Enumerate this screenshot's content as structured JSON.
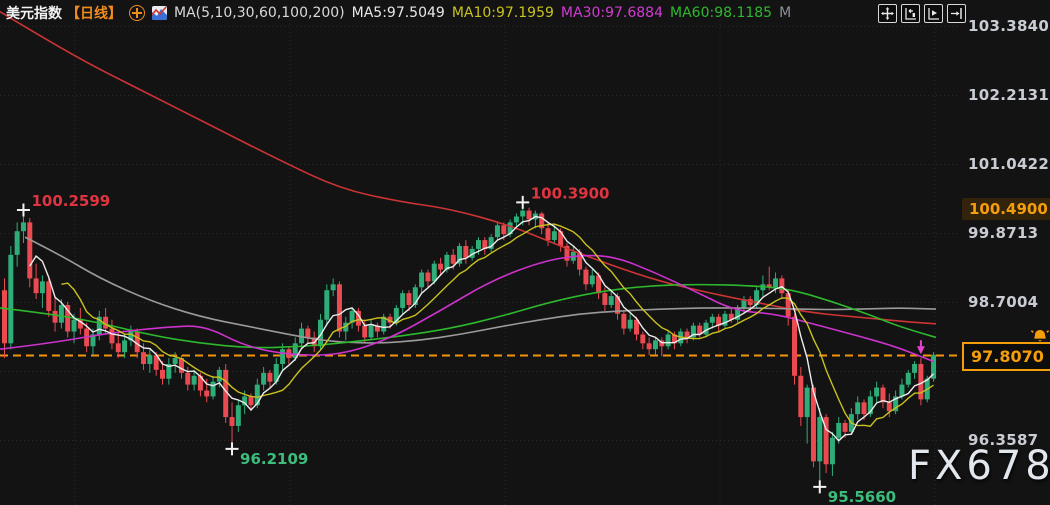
{
  "header": {
    "title": "美元指数",
    "period": "【日线】",
    "ma_group": "MA(5,10,30,60,100,200)",
    "ma5": "MA5:97.5049",
    "ma10": "MA10:97.1959",
    "ma30": "MA30:97.6884",
    "ma60": "MA60:98.1185",
    "extra": "M"
  },
  "watermark": "FX678",
  "chart_data": {
    "type": "candlestick",
    "instrument": "美元指数",
    "period": "日线",
    "current_price": 97.807,
    "current_price_label": "97.8070",
    "alert_level": {
      "label": "100.4900",
      "anchor_price": 100.27
    },
    "ylim": [
      95.3,
      103.8
    ],
    "axis_labels": [
      {
        "text": "103.3840",
        "price": 103.384
      },
      {
        "text": "102.2131",
        "price": 102.2131
      },
      {
        "text": "101.0422",
        "price": 101.0422
      },
      {
        "text": "99.8713",
        "price": 99.8713
      },
      {
        "text": "98.7004",
        "price": 98.7004
      },
      {
        "text": "96.3587",
        "price": 96.3587
      }
    ],
    "gridline_prices": [
      103.384,
      102.2131,
      101.0422,
      99.8713,
      98.7004,
      97.5295,
      96.3587
    ],
    "indicator_values": {
      "ma5": 97.5049,
      "ma10": 97.1959,
      "ma30": 97.6884,
      "ma60": 98.1185
    },
    "candles": [
      [
        98.9,
        99.1,
        97.75,
        98.0
      ],
      [
        98.0,
        99.65,
        97.9,
        99.5
      ],
      [
        99.5,
        100.05,
        99.3,
        99.9
      ],
      [
        99.9,
        100.26,
        99.7,
        100.05
      ],
      [
        100.05,
        100.12,
        98.95,
        99.1
      ],
      [
        99.1,
        99.35,
        98.75,
        98.85
      ],
      [
        98.85,
        99.15,
        98.6,
        99.05
      ],
      [
        99.05,
        99.1,
        98.45,
        98.55
      ],
      [
        98.55,
        98.8,
        98.2,
        98.35
      ],
      [
        98.35,
        98.75,
        98.25,
        98.65
      ],
      [
        98.65,
        98.7,
        98.1,
        98.2
      ],
      [
        98.2,
        98.5,
        98.0,
        98.4
      ],
      [
        98.4,
        98.6,
        98.15,
        98.25
      ],
      [
        98.25,
        98.35,
        97.85,
        97.95
      ],
      [
        97.95,
        98.25,
        97.8,
        98.15
      ],
      [
        98.15,
        98.55,
        98.05,
        98.45
      ],
      [
        98.45,
        98.6,
        98.15,
        98.25
      ],
      [
        98.25,
        98.4,
        97.9,
        98.0
      ],
      [
        98.0,
        98.2,
        97.75,
        97.85
      ],
      [
        97.85,
        98.15,
        97.75,
        98.05
      ],
      [
        98.05,
        98.3,
        97.95,
        98.2
      ],
      [
        98.2,
        98.25,
        97.75,
        97.85
      ],
      [
        97.85,
        98.0,
        97.55,
        97.65
      ],
      [
        97.65,
        97.9,
        97.5,
        97.8
      ],
      [
        97.8,
        97.85,
        97.45,
        97.55
      ],
      [
        97.55,
        97.7,
        97.3,
        97.4
      ],
      [
        97.4,
        97.75,
        97.3,
        97.65
      ],
      [
        97.65,
        97.85,
        97.5,
        97.75
      ],
      [
        97.75,
        97.8,
        97.4,
        97.5
      ],
      [
        97.5,
        97.6,
        97.2,
        97.3
      ],
      [
        97.3,
        97.55,
        97.2,
        97.45
      ],
      [
        97.45,
        97.5,
        97.1,
        97.2
      ],
      [
        97.2,
        97.4,
        97.0,
        97.1
      ],
      [
        97.1,
        97.45,
        97.05,
        97.35
      ],
      [
        97.35,
        97.6,
        97.25,
        97.55
      ],
      [
        97.55,
        97.65,
        96.65,
        96.75
      ],
      [
        96.75,
        97.0,
        96.21,
        96.6
      ],
      [
        96.6,
        97.05,
        96.5,
        96.95
      ],
      [
        96.95,
        97.2,
        96.8,
        97.1
      ],
      [
        97.1,
        97.15,
        96.85,
        96.95
      ],
      [
        96.95,
        97.4,
        96.9,
        97.3
      ],
      [
        97.3,
        97.6,
        97.2,
        97.5
      ],
      [
        97.5,
        97.55,
        97.25,
        97.35
      ],
      [
        97.35,
        97.75,
        97.3,
        97.65
      ],
      [
        97.65,
        98.0,
        97.55,
        97.9
      ],
      [
        97.9,
        97.95,
        97.65,
        97.75
      ],
      [
        97.75,
        98.1,
        97.7,
        98.0
      ],
      [
        98.0,
        98.35,
        97.9,
        98.25
      ],
      [
        98.25,
        98.3,
        98.0,
        98.1
      ],
      [
        98.1,
        98.2,
        97.85,
        97.95
      ],
      [
        97.95,
        98.5,
        97.9,
        98.4
      ],
      [
        98.4,
        99.0,
        98.3,
        98.9
      ],
      [
        98.9,
        99.1,
        98.8,
        99.0
      ],
      [
        99.0,
        99.05,
        98.1,
        98.2
      ],
      [
        98.2,
        98.45,
        98.05,
        98.35
      ],
      [
        98.35,
        98.6,
        98.25,
        98.55
      ],
      [
        98.55,
        98.6,
        98.2,
        98.3
      ],
      [
        98.3,
        98.4,
        98.0,
        98.1
      ],
      [
        98.1,
        98.4,
        98.05,
        98.3
      ],
      [
        98.3,
        98.35,
        98.1,
        98.2
      ],
      [
        98.2,
        98.5,
        98.15,
        98.45
      ],
      [
        98.45,
        98.5,
        98.25,
        98.35
      ],
      [
        98.35,
        98.65,
        98.3,
        98.6
      ],
      [
        98.6,
        98.9,
        98.5,
        98.85
      ],
      [
        98.85,
        98.9,
        98.55,
        98.65
      ],
      [
        98.65,
        99.0,
        98.6,
        98.95
      ],
      [
        98.95,
        99.25,
        98.85,
        99.2
      ],
      [
        99.2,
        99.25,
        98.95,
        99.05
      ],
      [
        99.05,
        99.4,
        99.0,
        99.35
      ],
      [
        99.35,
        99.45,
        99.15,
        99.25
      ],
      [
        99.25,
        99.55,
        99.2,
        99.5
      ],
      [
        99.5,
        99.6,
        99.25,
        99.35
      ],
      [
        99.35,
        99.7,
        99.3,
        99.65
      ],
      [
        99.65,
        99.75,
        99.35,
        99.45
      ],
      [
        99.45,
        99.65,
        99.4,
        99.6
      ],
      [
        99.6,
        99.8,
        99.5,
        99.75
      ],
      [
        99.75,
        99.8,
        99.5,
        99.6
      ],
      [
        99.6,
        99.85,
        99.55,
        99.8
      ],
      [
        99.8,
        100.05,
        99.75,
        100.0
      ],
      [
        100.0,
        100.05,
        99.75,
        99.85
      ],
      [
        99.85,
        100.1,
        99.8,
        100.05
      ],
      [
        100.05,
        100.2,
        99.95,
        100.15
      ],
      [
        100.15,
        100.39,
        100.0,
        100.25
      ],
      [
        100.25,
        100.3,
        100.0,
        100.1
      ],
      [
        100.1,
        100.25,
        99.95,
        100.2
      ],
      [
        100.2,
        100.23,
        99.85,
        99.95
      ],
      [
        99.95,
        100.05,
        99.65,
        99.75
      ],
      [
        99.75,
        100.0,
        99.7,
        99.9
      ],
      [
        99.9,
        99.95,
        99.55,
        99.65
      ],
      [
        99.65,
        99.7,
        99.3,
        99.4
      ],
      [
        99.4,
        99.65,
        99.35,
        99.55
      ],
      [
        99.55,
        99.6,
        99.15,
        99.25
      ],
      [
        99.25,
        99.3,
        98.9,
        99.0
      ],
      [
        99.0,
        99.25,
        98.95,
        99.15
      ],
      [
        99.15,
        99.2,
        98.75,
        98.85
      ],
      [
        98.85,
        98.95,
        98.55,
        98.65
      ],
      [
        98.65,
        98.9,
        98.6,
        98.8
      ],
      [
        98.8,
        98.85,
        98.4,
        98.5
      ],
      [
        98.5,
        98.55,
        98.15,
        98.25
      ],
      [
        98.25,
        98.5,
        98.2,
        98.4
      ],
      [
        98.4,
        98.45,
        98.05,
        98.15
      ],
      [
        98.15,
        98.2,
        97.9,
        98.0
      ],
      [
        98.0,
        98.1,
        97.8,
        97.9
      ],
      [
        97.9,
        98.1,
        97.8,
        98.05
      ],
      [
        98.05,
        98.1,
        97.78,
        97.95
      ],
      [
        97.95,
        98.2,
        97.9,
        98.15
      ],
      [
        98.15,
        98.2,
        97.9,
        98.0
      ],
      [
        98.0,
        98.25,
        97.95,
        98.2
      ],
      [
        98.2,
        98.25,
        98.0,
        98.1
      ],
      [
        98.1,
        98.35,
        98.05,
        98.3
      ],
      [
        98.3,
        98.35,
        98.1,
        98.15
      ],
      [
        98.15,
        98.4,
        98.1,
        98.35
      ],
      [
        98.35,
        98.5,
        98.25,
        98.45
      ],
      [
        98.45,
        98.5,
        98.2,
        98.3
      ],
      [
        98.3,
        98.55,
        98.25,
        98.5
      ],
      [
        98.5,
        98.6,
        98.35,
        98.4
      ],
      [
        98.4,
        98.65,
        98.35,
        98.6
      ],
      [
        98.6,
        98.8,
        98.5,
        98.75
      ],
      [
        98.75,
        98.8,
        98.55,
        98.65
      ],
      [
        98.65,
        98.95,
        98.6,
        98.9
      ],
      [
        98.9,
        99.15,
        98.8,
        99.0
      ],
      [
        99.0,
        99.3,
        98.9,
        98.95
      ],
      [
        98.95,
        99.2,
        98.85,
        99.1
      ],
      [
        99.1,
        99.15,
        98.75,
        98.85
      ],
      [
        98.85,
        98.9,
        98.3,
        98.45
      ],
      [
        98.45,
        98.5,
        97.3,
        97.45
      ],
      [
        97.45,
        97.6,
        96.6,
        96.75
      ],
      [
        96.75,
        97.3,
        96.3,
        97.25
      ],
      [
        97.25,
        97.3,
        95.9,
        96.0
      ],
      [
        96.0,
        96.9,
        95.566,
        96.75
      ],
      [
        96.75,
        96.8,
        95.8,
        95.95
      ],
      [
        95.95,
        96.5,
        95.75,
        96.4
      ],
      [
        96.4,
        96.75,
        96.3,
        96.65
      ],
      [
        96.65,
        96.7,
        96.4,
        96.5
      ],
      [
        96.5,
        96.9,
        96.45,
        96.8
      ],
      [
        96.8,
        97.1,
        96.7,
        97.0
      ],
      [
        97.0,
        97.05,
        96.7,
        96.8
      ],
      [
        96.8,
        97.2,
        96.75,
        97.1
      ],
      [
        97.1,
        97.35,
        97.0,
        97.25
      ],
      [
        97.25,
        97.3,
        96.9,
        97.0
      ],
      [
        97.0,
        97.15,
        96.75,
        96.85
      ],
      [
        96.85,
        97.2,
        96.8,
        97.1
      ],
      [
        97.1,
        97.4,
        97.05,
        97.3
      ],
      [
        97.3,
        97.55,
        97.25,
        97.5
      ],
      [
        97.5,
        97.7,
        97.4,
        97.65
      ],
      [
        97.65,
        97.75,
        96.95,
        97.05
      ],
      [
        97.05,
        97.45,
        97.0,
        97.4
      ],
      [
        97.4,
        97.85,
        97.35,
        97.807
      ]
    ],
    "ma_computed": [
      {
        "name": "MA10",
        "period": 10,
        "color": "#c9c21d"
      },
      {
        "name": "MA5",
        "period": 5,
        "color": "#ececec"
      }
    ],
    "ma_lines": [
      {
        "name": "MA200",
        "color": "#cd3434",
        "points": [
          [
            0,
            103.62
          ],
          [
            70,
            102.9
          ],
          [
            140,
            102.3
          ],
          [
            210,
            101.7
          ],
          [
            280,
            101.1
          ],
          [
            340,
            100.62
          ],
          [
            400,
            100.4
          ],
          [
            450,
            100.28
          ],
          [
            510,
            100.0
          ],
          [
            560,
            99.65
          ],
          [
            610,
            99.33
          ],
          [
            660,
            99.05
          ],
          [
            710,
            98.85
          ],
          [
            760,
            98.68
          ],
          [
            810,
            98.52
          ],
          [
            860,
            98.44
          ],
          [
            910,
            98.36
          ],
          [
            936,
            98.33
          ]
        ]
      },
      {
        "name": "MA100",
        "color": "#9a9a9a",
        "points": [
          [
            25,
            99.8
          ],
          [
            60,
            99.5
          ],
          [
            100,
            99.1
          ],
          [
            150,
            98.72
          ],
          [
            200,
            98.45
          ],
          [
            250,
            98.28
          ],
          [
            310,
            98.08
          ],
          [
            340,
            98.02
          ],
          [
            380,
            98.0
          ],
          [
            420,
            98.05
          ],
          [
            460,
            98.15
          ],
          [
            500,
            98.28
          ],
          [
            540,
            98.4
          ],
          [
            580,
            98.5
          ],
          [
            620,
            98.55
          ],
          [
            660,
            98.58
          ],
          [
            700,
            98.6
          ],
          [
            740,
            98.6
          ],
          [
            780,
            98.59
          ],
          [
            820,
            98.57
          ],
          [
            860,
            98.58
          ],
          [
            900,
            98.6
          ],
          [
            936,
            98.58
          ]
        ]
      },
      {
        "name": "MA60",
        "color": "#2db82d",
        "points": [
          [
            0,
            98.6
          ],
          [
            50,
            98.5
          ],
          [
            100,
            98.35
          ],
          [
            150,
            98.14
          ],
          [
            200,
            98.0
          ],
          [
            250,
            97.92
          ],
          [
            300,
            97.94
          ],
          [
            350,
            98.02
          ],
          [
            400,
            98.12
          ],
          [
            450,
            98.25
          ],
          [
            500,
            98.45
          ],
          [
            550,
            98.7
          ],
          [
            600,
            98.88
          ],
          [
            650,
            98.98
          ],
          [
            700,
            99.0
          ],
          [
            750,
            98.98
          ],
          [
            790,
            98.92
          ],
          [
            830,
            98.72
          ],
          [
            870,
            98.48
          ],
          [
            900,
            98.28
          ],
          [
            936,
            98.1
          ]
        ]
      },
      {
        "name": "MA30",
        "color": "#cc33cc",
        "points": [
          [
            0,
            97.9
          ],
          [
            50,
            98.0
          ],
          [
            110,
            98.18
          ],
          [
            170,
            98.28
          ],
          [
            205,
            98.3
          ],
          [
            245,
            97.95
          ],
          [
            290,
            97.8
          ],
          [
            340,
            97.8
          ],
          [
            390,
            98.08
          ],
          [
            440,
            98.55
          ],
          [
            490,
            99.05
          ],
          [
            540,
            99.38
          ],
          [
            580,
            99.5
          ],
          [
            615,
            99.47
          ],
          [
            655,
            99.2
          ],
          [
            695,
            98.88
          ],
          [
            735,
            98.55
          ],
          [
            775,
            98.5
          ],
          [
            815,
            98.32
          ],
          [
            855,
            98.14
          ],
          [
            895,
            97.95
          ],
          [
            934,
            97.69
          ]
        ]
      }
    ],
    "annotations": [
      {
        "index": 3,
        "price": 100.2599,
        "label": "100.2599",
        "kind": "high"
      },
      {
        "index": 82,
        "price": 100.39,
        "label": "100.3900",
        "kind": "high"
      },
      {
        "index": 36,
        "price": 96.2109,
        "label": "96.2109",
        "kind": "low"
      },
      {
        "index": 129,
        "price": 95.566,
        "label": "95.5660",
        "kind": "low"
      }
    ],
    "signal_marker": {
      "candle_index": 145,
      "price": 97.9,
      "color": "#e145cf",
      "shape": "down-arrow"
    },
    "colors": {
      "up": "#2ead79",
      "down": "#ea4a50",
      "grid": "#2a2a2a",
      "price_line": "#f2940c",
      "annotation_high": "#e03540",
      "annotation_low": "#3cbd7c",
      "cross": "#f2f2f2",
      "background": "#131313"
    }
  },
  "toolbar": {
    "buttons": [
      {
        "name": "pan-tool"
      },
      {
        "name": "left-axis-view"
      },
      {
        "name": "playback"
      },
      {
        "name": "go-to-latest"
      }
    ]
  }
}
